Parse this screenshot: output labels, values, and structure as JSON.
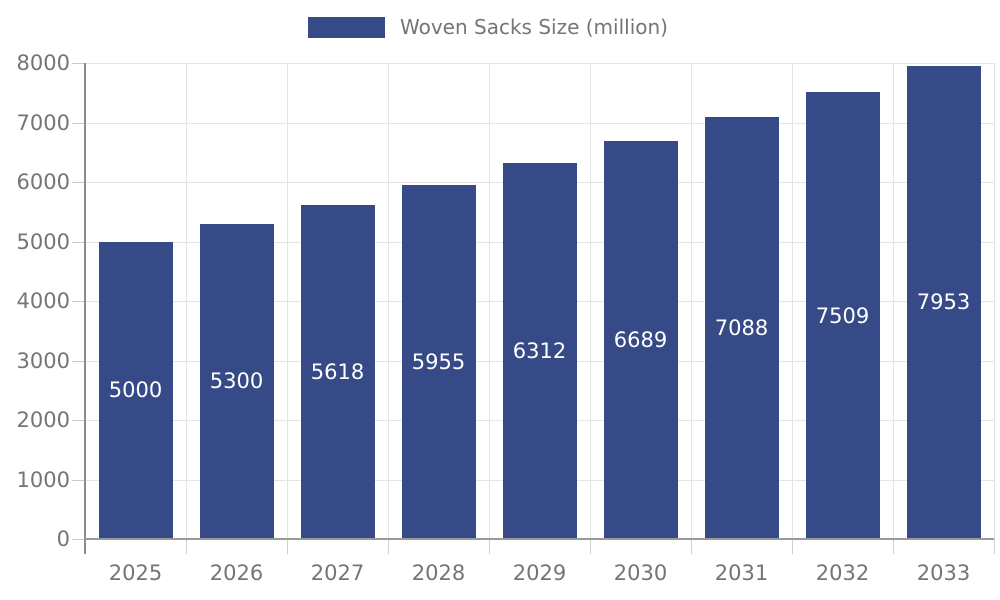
{
  "legend": {
    "label": "Woven Sacks Size (million)"
  },
  "chart_data": {
    "type": "bar",
    "title": "",
    "xlabel": "",
    "ylabel": "",
    "series_name": "Woven Sacks Size (million)",
    "categories": [
      "2025",
      "2026",
      "2027",
      "2028",
      "2029",
      "2030",
      "2031",
      "2032",
      "2033"
    ],
    "values": [
      5000,
      5300,
      5618,
      5955,
      6312,
      6689,
      7088,
      7509,
      7953
    ],
    "ylim": [
      0,
      8000
    ],
    "ytick_step": 1000,
    "yticks": [
      0,
      1000,
      2000,
      3000,
      4000,
      5000,
      6000,
      7000,
      8000
    ],
    "grid": true,
    "legend_position": "top",
    "value_labels_position": "inside-middle",
    "colors": {
      "bar": "#354a86",
      "value_label": "#ffffff",
      "tick_label": "#757575",
      "legend_text": "#757575",
      "gridline": "#e4e4e4",
      "axis_line": "#9b9b9b",
      "background": "#ffffff"
    }
  }
}
